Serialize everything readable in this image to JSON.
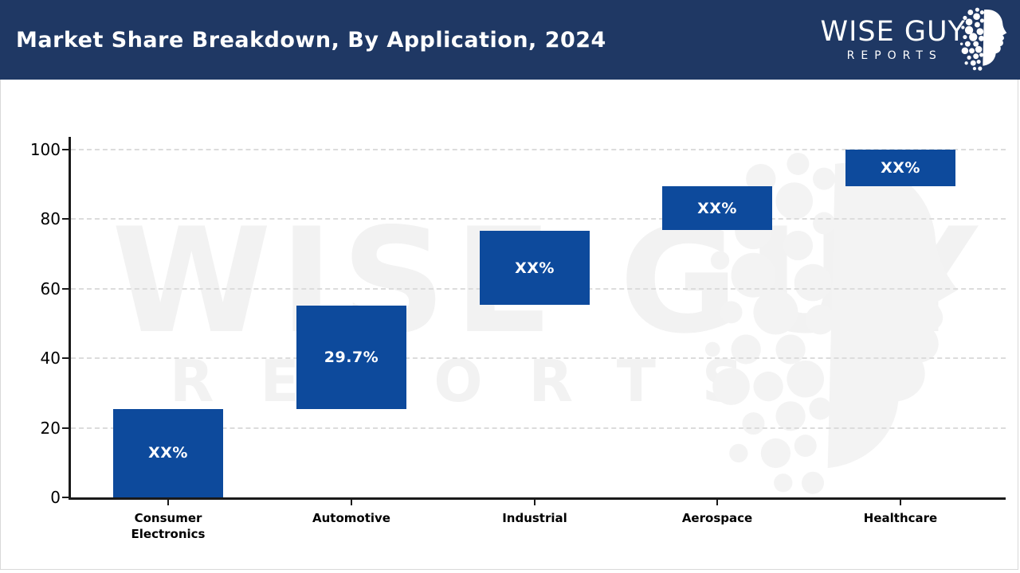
{
  "header": {
    "title": "Market Share Breakdown, By Application, 2024",
    "logo": {
      "name": "WISE GUY",
      "tagline": "REPORTS"
    }
  },
  "watermark": {
    "line1": "WISE GUY",
    "line2": "REPORTS"
  },
  "colors": {
    "header_bg": "#1f3864",
    "bar": "#0d4a9c",
    "grid": "#dcdcdc",
    "axis": "#1a1a1a",
    "watermark": "#f2f2f2",
    "bar_label": "#ffffff"
  },
  "chart_data": {
    "type": "bar",
    "subtype": "waterfall",
    "title": "Market Share Breakdown, By Application, 2024",
    "xlabel": "",
    "ylabel": "",
    "ylim": [
      0,
      100
    ],
    "yticks": [
      0,
      20,
      40,
      60,
      80,
      100
    ],
    "grid": true,
    "legend": false,
    "categories": [
      "Consumer Electronics",
      "Automotive",
      "Industrial",
      "Aerospace",
      "Healthcare"
    ],
    "segments": [
      {
        "category": "Consumer Electronics",
        "start": 0,
        "end": 25.4,
        "value_label": "XX%"
      },
      {
        "category": "Automotive",
        "start": 25.4,
        "end": 55.1,
        "value_label": "29.7%",
        "value": 29.7
      },
      {
        "category": "Industrial",
        "start": 55.3,
        "end": 76.5,
        "value_label": "XX%"
      },
      {
        "category": "Aerospace",
        "start": 76.7,
        "end": 89.4,
        "value_label": "XX%"
      },
      {
        "category": "Healthcare",
        "start": 89.4,
        "end": 100,
        "value_label": "XX%"
      }
    ],
    "bar_color": "#0d4a9c",
    "value_label_color": "#ffffff"
  }
}
